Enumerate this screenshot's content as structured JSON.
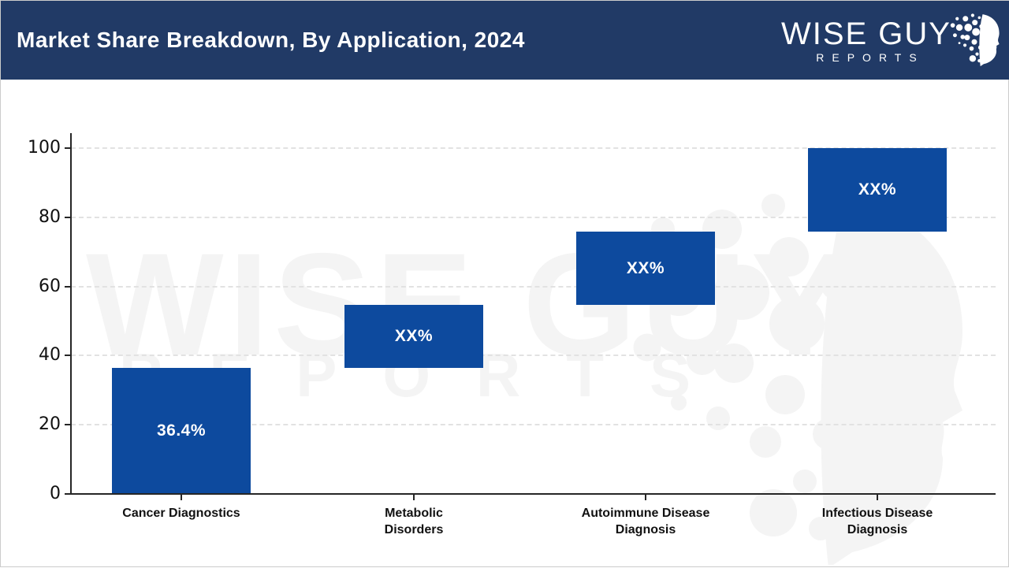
{
  "header": {
    "title": "Market Share Breakdown, By Application, 2024",
    "logo": {
      "line1": "WISE GUY",
      "line2": "REPORTS"
    },
    "bg_color": "#213a66"
  },
  "watermark": {
    "line1": "WISE GUY",
    "line2": "REPORTS"
  },
  "chart_data": {
    "type": "bar",
    "subtype": "waterfall",
    "title": "Market Share Breakdown, By Application, 2024",
    "categories": [
      "Cancer Diagnostics",
      "Metabolic Disorders",
      "Autoimmune Disease Diagnosis",
      "Infectious Disease Diagnosis"
    ],
    "category_lines": [
      [
        "Cancer Diagnostics"
      ],
      [
        "Metabolic",
        "Disorders"
      ],
      [
        "Autoimmune Disease",
        "Diagnosis"
      ],
      [
        "Infectious Disease",
        "Diagnosis"
      ]
    ],
    "segments": [
      {
        "start": 0,
        "end": 36.4,
        "value_label": "36.4%"
      },
      {
        "start": 36.4,
        "end": 54.6,
        "value_label": "XX%"
      },
      {
        "start": 54.6,
        "end": 75.9,
        "value_label": "XX%"
      },
      {
        "start": 75.9,
        "end": 100,
        "value_label": "XX%"
      }
    ],
    "values": [
      36.4,
      18.2,
      21.3,
      24.1
    ],
    "y_ticks": [
      0,
      20,
      40,
      60,
      80,
      100
    ],
    "ylim": [
      0,
      104
    ],
    "bar_color": "#0d4a9e",
    "grid": "horizontal-dashed",
    "legend": "none",
    "xlabel": "",
    "ylabel": ""
  }
}
